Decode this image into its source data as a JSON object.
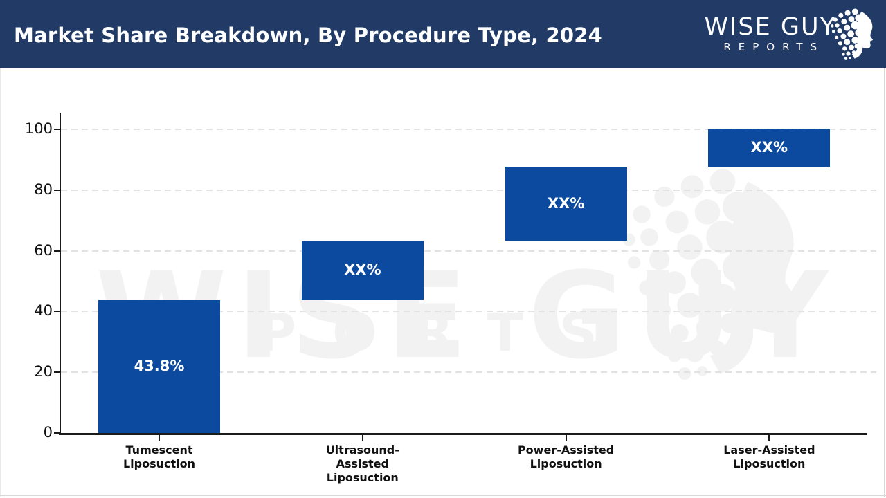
{
  "header": {
    "title": "Market Share Breakdown, By Procedure Type, 2024",
    "logo": {
      "brand": "WISE GUY",
      "sub": "REPORTS"
    }
  },
  "watermark": {
    "line1": "WISE GUY",
    "line2": "REPORTS"
  },
  "colors": {
    "navy": "#213a66",
    "bar": "#0b4a9e",
    "grid": "#e2e2e2",
    "axis": "#1a1a1a",
    "text": "#111111",
    "watermark": "#f2f2f2",
    "border": "#d8d8d8"
  },
  "chart_data": {
    "type": "bar",
    "subtype": "waterfall",
    "title": "Market Share Breakdown, By Procedure Type, 2024",
    "xlabel": "",
    "ylabel": "",
    "ylim": [
      0,
      105
    ],
    "grid": true,
    "legend": null,
    "yticks": [
      0,
      20,
      40,
      60,
      80,
      100
    ],
    "categories": [
      "Tumescent Liposuction",
      "Ultrasound-Assisted Liposuction",
      "Power-Assisted Liposuction",
      "Laser-Assisted Liposuction"
    ],
    "bars": [
      {
        "category_lines": [
          "Tumescent",
          "Liposuction"
        ],
        "start": 0,
        "end": 43.8,
        "label": "43.8%"
      },
      {
        "category_lines": [
          "Ultrasound-",
          "Assisted",
          "Liposuction"
        ],
        "start": 43.8,
        "end": 63.4,
        "label": "XX%"
      },
      {
        "category_lines": [
          "Power-Assisted",
          "Liposuction"
        ],
        "start": 63.4,
        "end": 87.6,
        "label": "XX%"
      },
      {
        "category_lines": [
          "Laser-Assisted",
          "Liposuction"
        ],
        "start": 87.6,
        "end": 100,
        "label": "XX%"
      }
    ]
  }
}
